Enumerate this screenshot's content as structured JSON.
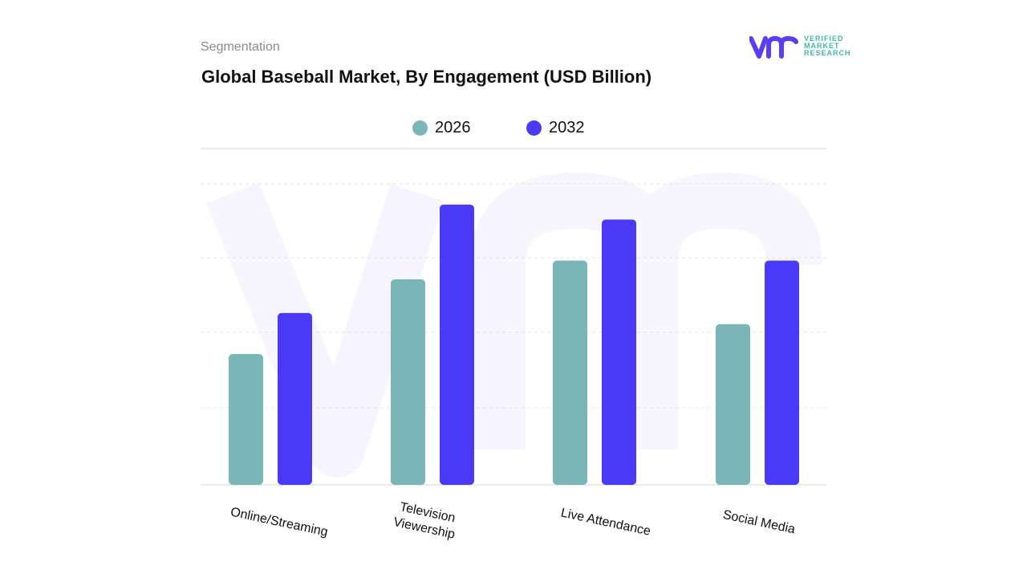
{
  "header": {
    "section": "Segmentation",
    "title": "Global Baseball Market, By Engagement (USD Billion)"
  },
  "logo": {
    "line1": "VERIFIED",
    "line2": "MARKET",
    "line3": "RESEARCH",
    "color_primary": "#5b3df5",
    "color_text": "#3fb8a8"
  },
  "colors": {
    "series_2026": "#7ab5b8",
    "series_2032": "#4a3af7",
    "grid": "#e3e3e3",
    "axis": "#e3e3e3"
  },
  "chart_data": {
    "type": "bar",
    "title": "Global Baseball Market, By Engagement (USD Billion)",
    "xlabel": "",
    "ylabel": "",
    "categories": [
      "Online/Streaming",
      "Television Viewership",
      "Live Attendance",
      "Social Media"
    ],
    "series": [
      {
        "name": "2026",
        "values": [
          1.75,
          2.75,
          3.0,
          2.15
        ]
      },
      {
        "name": "2032",
        "values": [
          2.3,
          3.75,
          3.55,
          3.0
        ]
      }
    ],
    "ylim": [
      0,
      4.5
    ],
    "grid": true,
    "legend": "top-center"
  }
}
